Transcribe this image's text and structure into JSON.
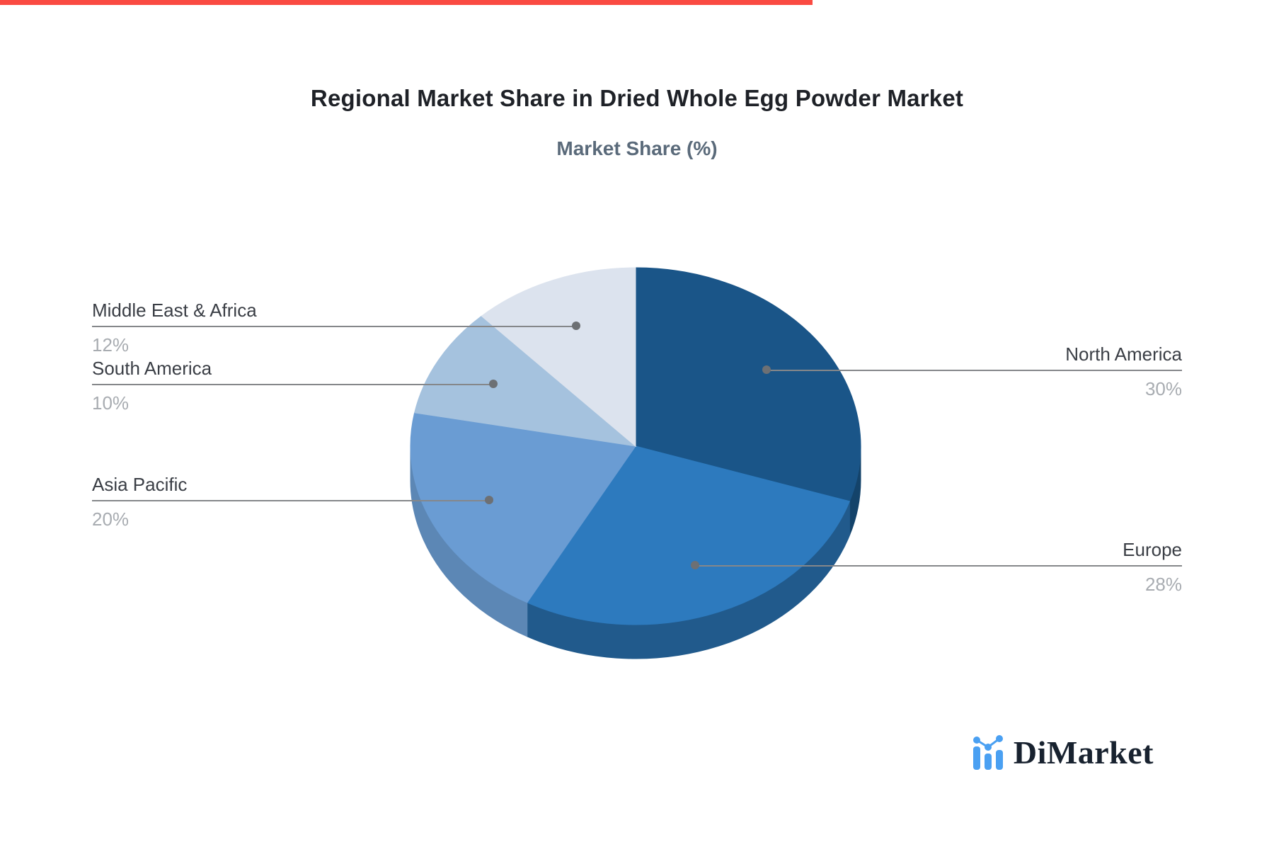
{
  "page": {
    "title": "Regional Market Share in Dried Whole Egg Powder Market",
    "subtitle": "Market Share (%)"
  },
  "chart_data": {
    "type": "pie",
    "style": "3d-pie",
    "title": "Regional Market Share in Dried Whole Egg Powder Market",
    "subtitle": "Market Share (%)",
    "unit": "%",
    "start_angle": "12-o-clock",
    "direction": "clockwise",
    "legend_position": "callout-labels",
    "categories": [
      "North America",
      "Europe",
      "Asia Pacific",
      "South America",
      "Middle East & Africa"
    ],
    "values": [
      30,
      28,
      20,
      10,
      12
    ],
    "labels": [
      "30%",
      "28%",
      "20%",
      "10%",
      "12%"
    ],
    "colors": [
      "#1a5588",
      "#2d7abe",
      "#6a9cd3",
      "#a5c2de",
      "#dce3ee"
    ],
    "depth_colors": [
      "#14436a",
      "#215a8c",
      "#5c87b5",
      "#8fadc9",
      "#c2cddd"
    ]
  },
  "watermark": {
    "brand": "DiMarket",
    "icon": "bar-chart-logo-icon",
    "icon_color": "#4aa0f2",
    "text_color": "#18222f"
  }
}
